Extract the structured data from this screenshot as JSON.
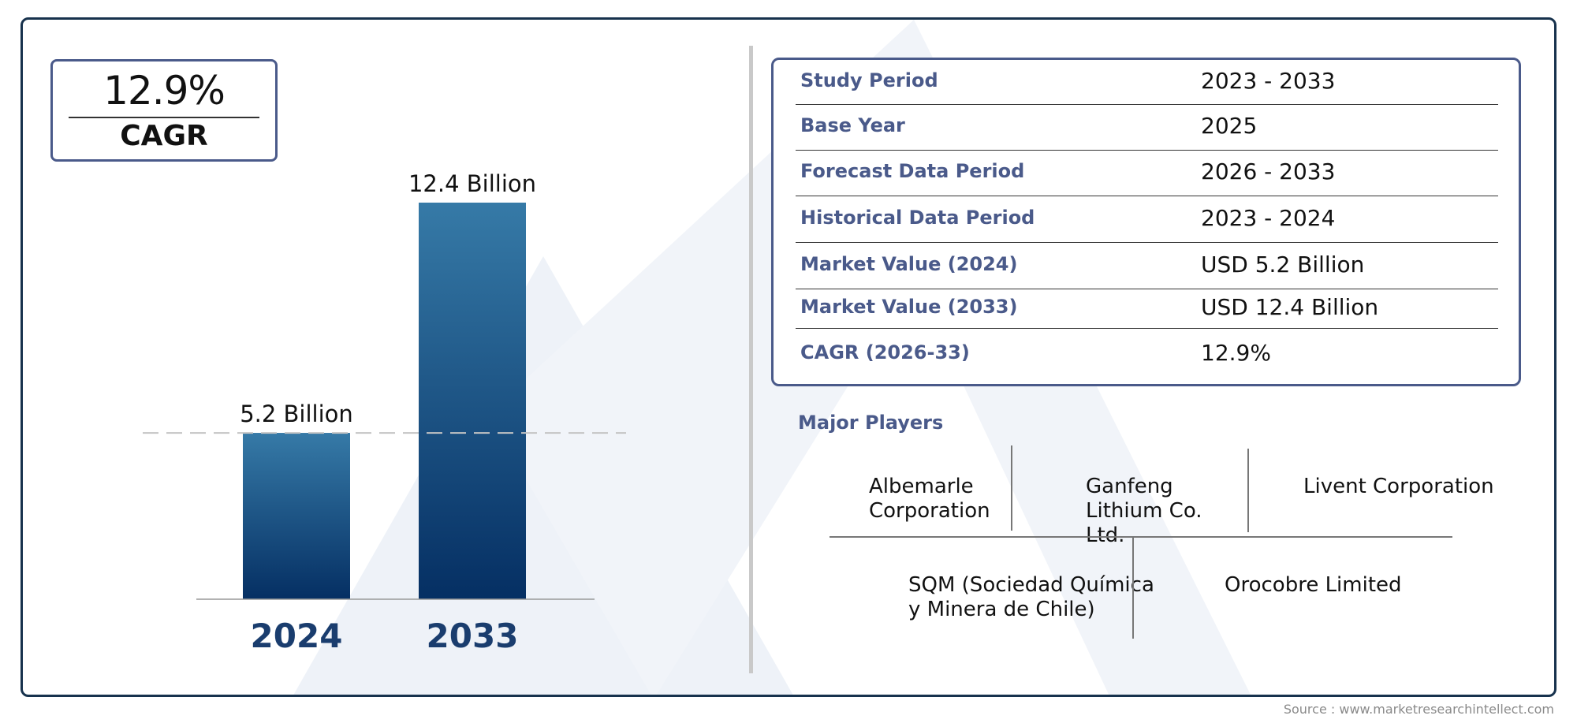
{
  "cagr": {
    "value": "12.9%",
    "label": "CAGR"
  },
  "chart_data": {
    "type": "bar",
    "categories": [
      "2024",
      "2033"
    ],
    "values": [
      5.2,
      12.4
    ],
    "value_labels": [
      "5.2 Billion",
      "12.4 Billion"
    ],
    "reference_line": 5.2,
    "title": "",
    "xlabel": "",
    "ylabel": "",
    "ylim": [
      0,
      12.4
    ],
    "grid": false,
    "colors": {
      "bar_top": "#367aa7",
      "bar_bottom": "#052f63",
      "category_label": "#1a3d6e"
    }
  },
  "info_table": [
    {
      "key": "Study Period",
      "value": "2023 - 2033"
    },
    {
      "key": "Base Year",
      "value": "2025"
    },
    {
      "key": "Forecast Data Period",
      "value": "2026 - 2033"
    },
    {
      "key": "Historical Data Period",
      "value": "2023 - 2024"
    },
    {
      "key": "Market Value (2024)",
      "value": "USD 5.2 Billion"
    },
    {
      "key": "Market Value (2033)",
      "value": "USD 12.4 Billion"
    },
    {
      "key": "CAGR (2026-33)",
      "value": "12.9%"
    }
  ],
  "players": {
    "title": "Major Players",
    "row1": [
      {
        "line1": "Albemarle",
        "line2": "Corporation",
        "line3": ""
      },
      {
        "line1": "Ganfeng",
        "line2": "Lithium Co.",
        "line3": "Ltd."
      },
      {
        "line1": "Livent Corporation",
        "line2": "",
        "line3": ""
      }
    ],
    "row2": [
      {
        "line1": "SQM (Sociedad Química",
        "line2": "y Minera de Chile)"
      },
      {
        "line1": "Orocobre Limited",
        "line2": ""
      }
    ]
  },
  "source": "Source : www.marketresearchintellect.com",
  "colors": {
    "frame": "#17324d",
    "accent": "#4a5a8a",
    "watermark": "#eef2f8"
  }
}
